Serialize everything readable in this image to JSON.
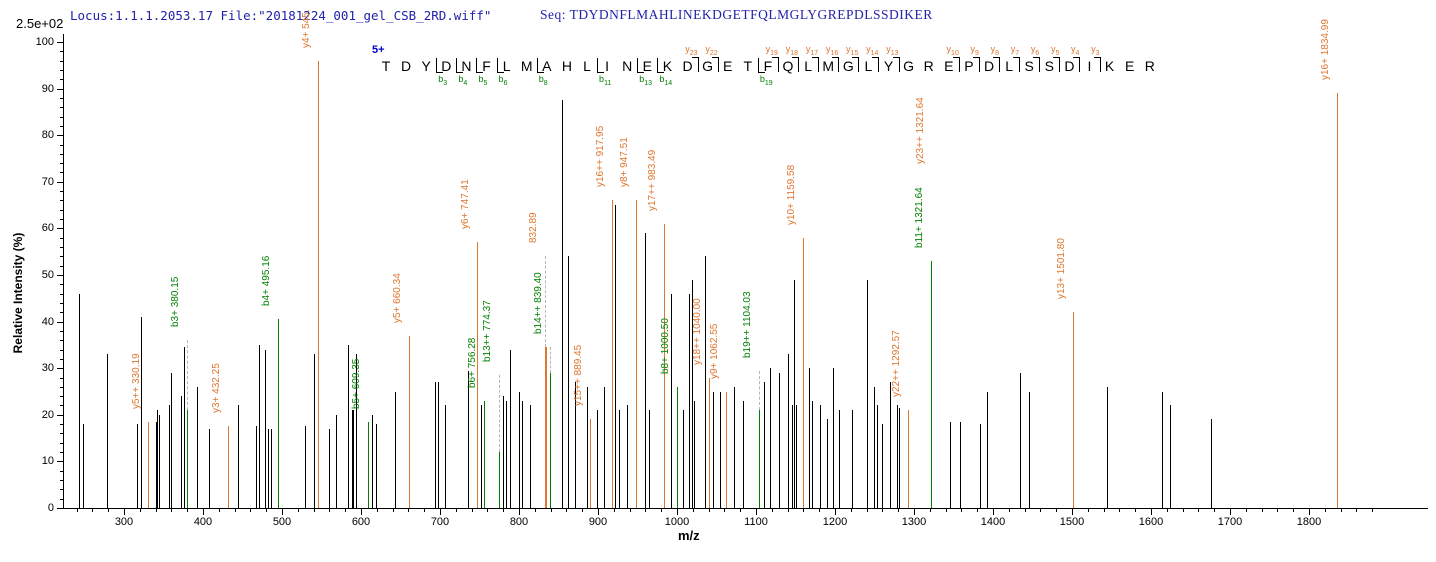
{
  "header": {
    "locus_file": "Locus:1.1.1.2053.17 File:\"20181224_001_gel_CSB_2RD.wiff\"",
    "seq_line": "Seq: TDYDNFLMAHLINEKDGETFQLMGLYGREPDLSSDIKER"
  },
  "colors": {
    "y_ion": "#e0762f",
    "b_ion": "#008000",
    "peak_black": "#000000",
    "header_blue": "#2222aa",
    "charge_blue": "#0000cc",
    "leader_gray": "#b5b5b5"
  },
  "sequence_panel": {
    "charge_label": "5+",
    "sequence": "TDYDNFLMAHLINEKDGETFQLMGLYGREPDLSSDIKER",
    "b_markers": [
      {
        "num": 3,
        "after": 3
      },
      {
        "num": 4,
        "after": 4
      },
      {
        "num": 5,
        "after": 5
      },
      {
        "num": 6,
        "after": 6
      },
      {
        "num": 8,
        "after": 8
      },
      {
        "num": 11,
        "after": 11
      },
      {
        "num": 13,
        "after": 13
      },
      {
        "num": 14,
        "after": 14
      },
      {
        "num": 19,
        "after": 19
      }
    ],
    "y_markers": [
      {
        "num": 23,
        "after": 16
      },
      {
        "num": 22,
        "after": 17
      },
      {
        "num": 19,
        "after": 20
      },
      {
        "num": 18,
        "after": 21
      },
      {
        "num": 17,
        "after": 22
      },
      {
        "num": 16,
        "after": 23
      },
      {
        "num": 15,
        "after": 24
      },
      {
        "num": 14,
        "after": 25
      },
      {
        "num": 13,
        "after": 26
      },
      {
        "num": 10,
        "after": 29
      },
      {
        "num": 9,
        "after": 30
      },
      {
        "num": 8,
        "after": 31
      },
      {
        "num": 7,
        "after": 32
      },
      {
        "num": 6,
        "after": 33
      },
      {
        "num": 5,
        "after": 34
      },
      {
        "num": 4,
        "after": 35
      },
      {
        "num": 3,
        "after": 36
      }
    ]
  },
  "chart_data": {
    "type": "bar",
    "subtype": "ms2-spectrum",
    "title": "",
    "xlabel": "m/z",
    "ylabel": "Relative  Intensity (%)",
    "y_scale_note": "2.5e+02",
    "xlim": [
      223,
      1880
    ],
    "ylim": [
      0,
      100
    ],
    "x_major_ticks": [
      300,
      400,
      500,
      600,
      700,
      800,
      900,
      1000,
      1100,
      1200,
      1300,
      1400,
      1500,
      1600,
      1700,
      1800
    ],
    "x_minor_step": 20,
    "y_major_step": 10,
    "y_minor_step": 2,
    "grid": false,
    "annotated_peaks": [
      {
        "mz": 330.19,
        "intensity": 18.5,
        "series": "y",
        "label": "y5++ 330.19"
      },
      {
        "mz": 380.15,
        "intensity": 21,
        "series": "b",
        "label": "b3+ 380.15",
        "label_at": 36
      },
      {
        "mz": 432.25,
        "intensity": 17.5,
        "series": "y",
        "label": "y3+ 432.25"
      },
      {
        "mz": 495.16,
        "intensity": 40.5,
        "series": "b",
        "label": "b4+ 495.16"
      },
      {
        "mz": 545.3,
        "intensity": 96,
        "series": "y",
        "label": "y4+ 545."
      },
      {
        "mz": 609.35,
        "intensity": 18.5,
        "series": "b",
        "label": "b5+ 609.35"
      },
      {
        "mz": 660.34,
        "intensity": 37,
        "series": "y",
        "label": "y5+ 660.34"
      },
      {
        "mz": 747.41,
        "intensity": 57,
        "series": "y",
        "label": "y6+ 747.41"
      },
      {
        "mz": 756.28,
        "intensity": 23,
        "series": "b",
        "label": "b6+ 756.28"
      },
      {
        "mz": 774.37,
        "intensity": 12,
        "series": "b",
        "label": "b13++ 774.37",
        "label_at": 28.5
      },
      {
        "mz": 832.89,
        "intensity": 34.5,
        "series": "y",
        "label": "832.89",
        "label_at": 54,
        "thick": true
      },
      {
        "mz": 839.4,
        "intensity": 29,
        "series": "b",
        "label": "b14++ 839.40",
        "label_at": 34.5
      },
      {
        "mz": 889.45,
        "intensity": 19,
        "series": "y",
        "label": "y15++ 889.45"
      },
      {
        "mz": 917.95,
        "intensity": 66,
        "series": "y",
        "label": "y16++ 917.95"
      },
      {
        "mz": 947.51,
        "intensity": 66,
        "series": "y",
        "label": "y8+ 947.51"
      },
      {
        "mz": 983.49,
        "intensity": 61,
        "series": "y",
        "label": "y17++ 983.49"
      },
      {
        "mz": 1000.5,
        "intensity": 26,
        "series": "b",
        "label": "b8+ 1000.50"
      },
      {
        "mz": 1040.0,
        "intensity": 28,
        "series": "y",
        "label": "y18++ 1040.00"
      },
      {
        "mz": 1062.55,
        "intensity": 25,
        "series": "y",
        "label": "y9+ 1062.55"
      },
      {
        "mz": 1104.03,
        "intensity": 21,
        "series": "b",
        "label": "b19++ 1104.03",
        "label_at": 29.5
      },
      {
        "mz": 1159.58,
        "intensity": 58,
        "series": "y",
        "label": "y10+ 1159.58"
      },
      {
        "mz": 1292.57,
        "intensity": 21,
        "series": "y",
        "label": "y22++ 1292.57"
      },
      {
        "mz": 1321.64,
        "intensity": 53,
        "series": "b",
        "label": "b11+ 1321.64",
        "extra_label": {
          "text": "y23++ 1321.64",
          "series": "y",
          "at": 71
        }
      },
      {
        "mz": 1501.8,
        "intensity": 42,
        "series": "y",
        "label": "y13+ 1501.80"
      },
      {
        "mz": 1834.99,
        "intensity": 89,
        "series": "y",
        "label": "y16+ 1834.99"
      }
    ],
    "unannotated_peaks": [
      [
        243,
        46
      ],
      [
        248,
        18
      ],
      [
        279,
        33
      ],
      [
        317,
        18
      ],
      [
        322,
        41
      ],
      [
        340,
        18.5
      ],
      [
        342,
        21
      ],
      [
        344,
        20
      ],
      [
        357,
        22
      ],
      [
        359,
        29
      ],
      [
        372,
        24
      ],
      [
        376,
        34.5
      ],
      [
        393,
        26
      ],
      [
        407,
        17
      ],
      [
        444,
        22
      ],
      [
        467,
        17.5
      ],
      [
        471,
        35
      ],
      [
        478,
        34
      ],
      [
        482,
        17
      ],
      [
        486,
        17
      ],
      [
        529,
        17.5
      ],
      [
        541,
        33
      ],
      [
        560,
        17
      ],
      [
        568,
        20
      ],
      [
        583,
        35
      ],
      [
        588,
        21
      ],
      [
        590,
        21
      ],
      [
        594,
        33
      ],
      [
        614,
        20
      ],
      [
        619,
        18
      ],
      [
        643,
        25
      ],
      [
        694,
        27
      ],
      [
        697,
        27
      ],
      [
        706,
        22
      ],
      [
        735,
        29.5
      ],
      [
        752,
        22
      ],
      [
        780,
        24
      ],
      [
        784,
        23
      ],
      [
        789,
        34
      ],
      [
        800,
        25
      ],
      [
        804,
        23
      ],
      [
        814,
        22
      ],
      [
        855,
        87.5
      ],
      [
        862,
        54
      ],
      [
        871,
        27
      ],
      [
        886,
        26
      ],
      [
        899,
        21
      ],
      [
        907,
        26
      ],
      [
        921,
        65
      ],
      [
        926,
        21
      ],
      [
        937,
        22
      ],
      [
        960,
        59
      ],
      [
        964,
        21
      ],
      [
        992,
        46
      ],
      [
        1008,
        21
      ],
      [
        1015,
        46
      ],
      [
        1019,
        49
      ],
      [
        1022,
        23
      ],
      [
        1036,
        54
      ],
      [
        1045,
        25
      ],
      [
        1055,
        25
      ],
      [
        1072,
        26
      ],
      [
        1083,
        23
      ],
      [
        1110,
        27
      ],
      [
        1118,
        30
      ],
      [
        1129,
        29
      ],
      [
        1141,
        33
      ],
      [
        1146,
        22
      ],
      [
        1148,
        49
      ],
      [
        1151,
        22
      ],
      [
        1167,
        30
      ],
      [
        1171,
        23
      ],
      [
        1181,
        22
      ],
      [
        1190,
        19
      ],
      [
        1198,
        30
      ],
      [
        1205,
        21
      ],
      [
        1222,
        21
      ],
      [
        1241,
        49
      ],
      [
        1249,
        26
      ],
      [
        1253,
        22
      ],
      [
        1259,
        18
      ],
      [
        1269,
        27
      ],
      [
        1278,
        22
      ],
      [
        1281,
        21.5
      ],
      [
        1346,
        18.5
      ],
      [
        1358,
        18.5
      ],
      [
        1384,
        18
      ],
      [
        1392,
        25
      ],
      [
        1434,
        29
      ],
      [
        1445,
        25
      ],
      [
        1544,
        26
      ],
      [
        1614,
        25
      ],
      [
        1624,
        22
      ],
      [
        1676,
        19
      ]
    ]
  }
}
